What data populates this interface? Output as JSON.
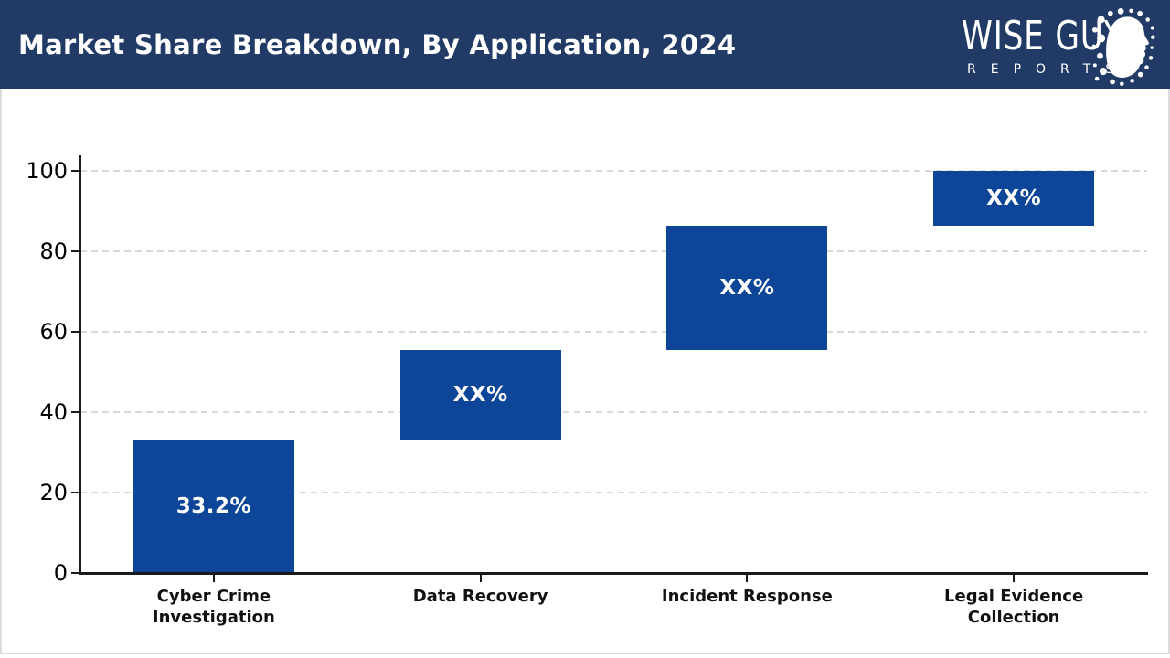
{
  "header": {
    "title": "Market Share Breakdown, By Application, 2024",
    "bg_color": "#213a66",
    "logo": {
      "line1": "WISE GUY",
      "line2": "REPORTS"
    }
  },
  "watermark": {
    "line1": "WISE GUY",
    "line2": "REPORTS"
  },
  "chart_data": {
    "type": "bar",
    "subtype": "waterfall",
    "title": "Market Share Breakdown, By Application, 2024",
    "categories": [
      "Cyber Crime\nInvestigation",
      "Data Recovery",
      "Incident Response",
      "Legal Evidence\nCollection"
    ],
    "segments": [
      {
        "category": "Cyber Crime Investigation",
        "start": 0,
        "end": 33.2,
        "label": "33.2%"
      },
      {
        "category": "Data Recovery",
        "start": 33.2,
        "end": 55.5,
        "label": "XX%"
      },
      {
        "category": "Incident Response",
        "start": 55.5,
        "end": 86.4,
        "label": "XX%"
      },
      {
        "category": "Legal Evidence Collection",
        "start": 86.4,
        "end": 100,
        "label": "XX%"
      }
    ],
    "yticks": [
      0,
      20,
      40,
      60,
      80,
      100
    ],
    "ylim": [
      0,
      104
    ],
    "bar_color": "#0d4699",
    "value_label_color": "#ffffff",
    "grid": "horizontal-dashed",
    "legend": "none",
    "xlabel": "",
    "ylabel": ""
  }
}
